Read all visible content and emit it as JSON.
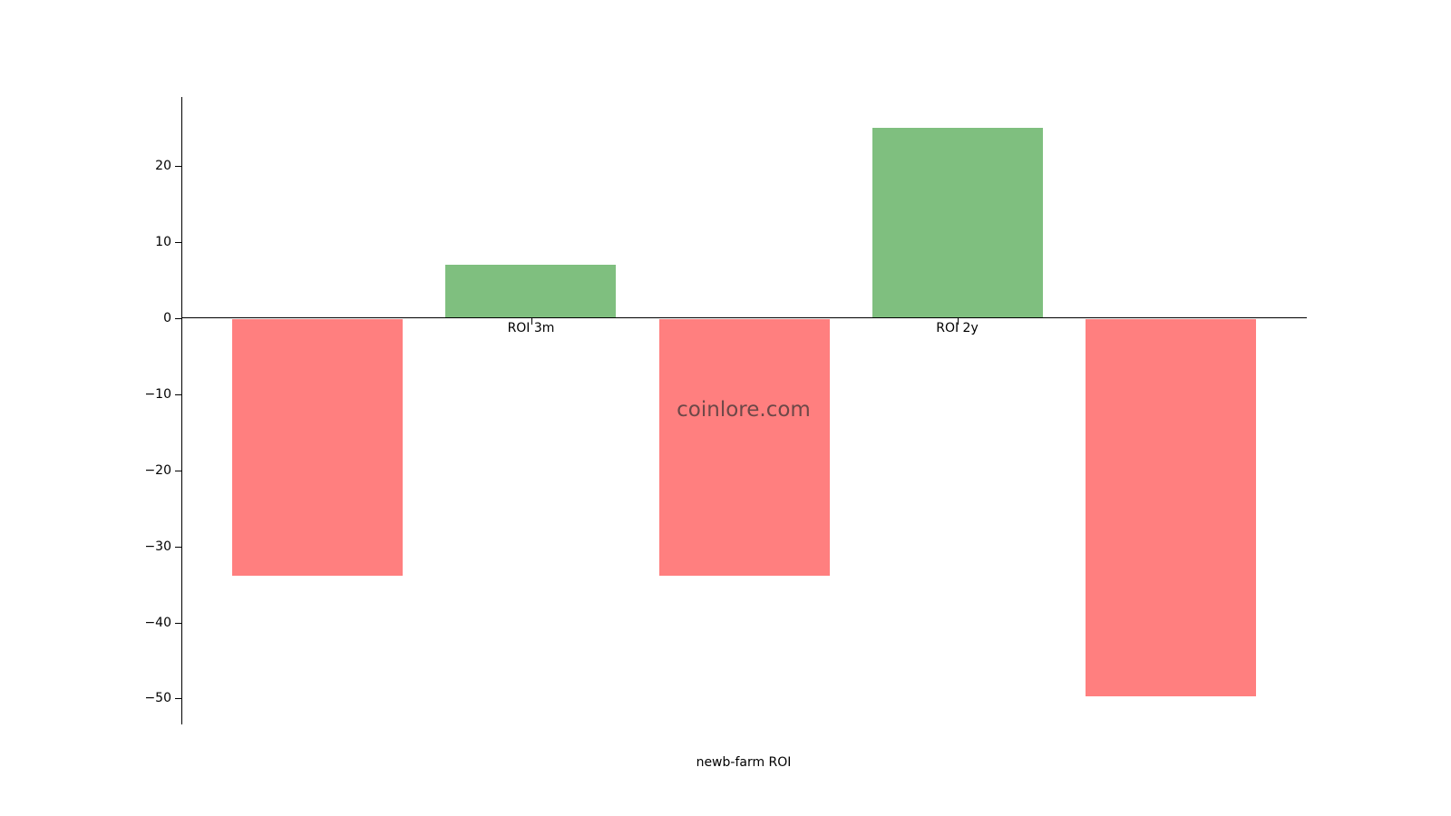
{
  "page": {
    "background_color": "#ffffff",
    "axis_color": "#000000",
    "text_color": "#000000"
  },
  "chart_data": {
    "type": "bar",
    "title": "",
    "xlabel": "newb-farm ROI",
    "ylabel": "",
    "watermark": "coinlore.com",
    "watermark_color": "#333333",
    "watermark_opacity": 0.72,
    "categories": [
      "",
      "ROI 3m",
      "",
      "ROI 2y",
      ""
    ],
    "values": [
      -33.8,
      7,
      -33.8,
      25,
      -49.6
    ],
    "bar_colors": [
      "#ff7f7f",
      "#7fbf7f",
      "#ff7f7f",
      "#7fbf7f",
      "#ff7f7f"
    ],
    "positive_color": "#7fbf7f",
    "negative_color": "#ff7f7f",
    "bar_width_fraction": 0.8,
    "yticks": [
      20,
      10,
      0,
      -10,
      -20,
      -30,
      -40,
      -50
    ],
    "ytick_labels": [
      "20",
      "10",
      "0",
      "−10",
      "−20",
      "−30",
      "−40",
      "−50"
    ],
    "ylim": [
      -53.4,
      29.0
    ],
    "xlim": [
      -0.64,
      4.64
    ],
    "grid": false,
    "legend": null,
    "baseline_at_zero": true
  }
}
